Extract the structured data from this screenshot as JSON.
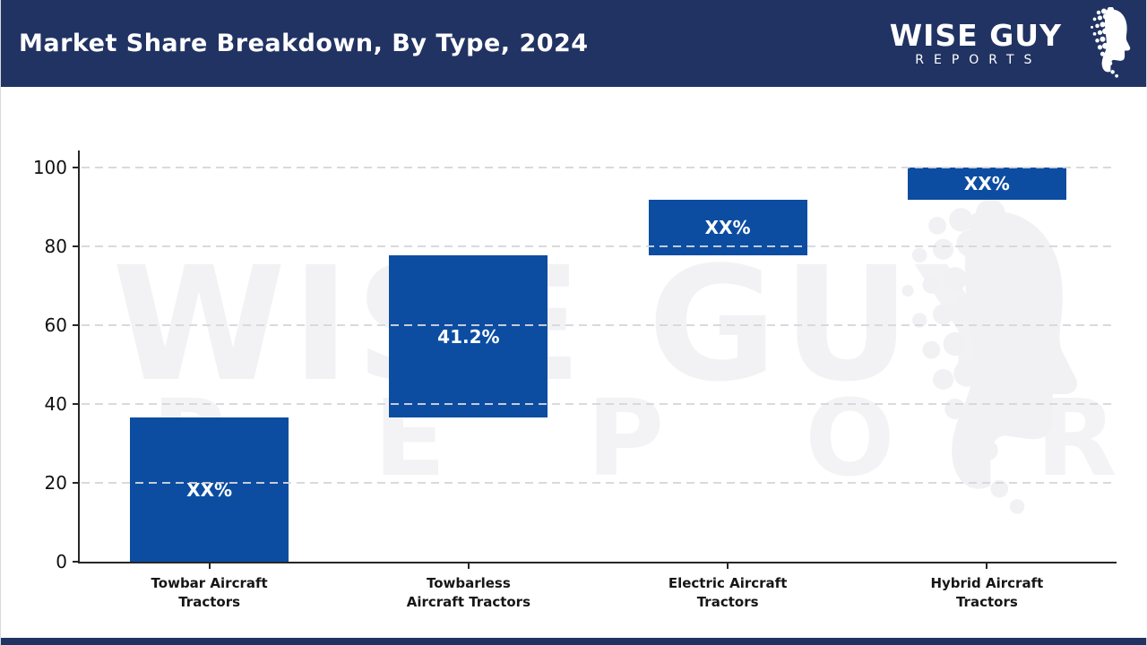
{
  "header": {
    "title": "Market Share Breakdown, By Type, 2024",
    "bg_color": "#213363",
    "logo": {
      "line1": "WISE GUY",
      "line2": "REPORTS"
    }
  },
  "watermark": {
    "line1": "WISE GUY",
    "line2": "R E P O R T S"
  },
  "chart_data": {
    "type": "bar",
    "subtype": "waterfall",
    "title": "Market Share Breakdown, By Type, 2024",
    "categories": [
      "Towbar Aircraft Tractors",
      "Towbarless Aircraft Tractors",
      "Electric Aircraft Tractors",
      "Hybrid Aircraft Tractors"
    ],
    "category_lines": [
      [
        "Towbar Aircraft",
        "Tractors"
      ],
      [
        "Towbarless",
        "Aircraft Tractors"
      ],
      [
        "Electric Aircraft",
        "Tractors"
      ],
      [
        "Hybrid Aircraft",
        "Tractors"
      ]
    ],
    "segments": [
      {
        "start": 0,
        "end": 36.5,
        "value": 36.5,
        "label": "XX%"
      },
      {
        "start": 36.5,
        "end": 77.7,
        "value": 41.2,
        "label": "41.2%"
      },
      {
        "start": 77.7,
        "end": 91.8,
        "value": 14.1,
        "label": "XX%"
      },
      {
        "start": 91.8,
        "end": 100,
        "value": 8.2,
        "label": "XX%"
      }
    ],
    "yticks": [
      0,
      20,
      40,
      60,
      80,
      100
    ],
    "ylim": [
      0,
      100
    ],
    "ylabel": "",
    "xlabel": "",
    "grid": "horizontal-dashed",
    "bar_color": "#0c4da1",
    "bar_label_color": "#ffffff",
    "legend": "none"
  }
}
